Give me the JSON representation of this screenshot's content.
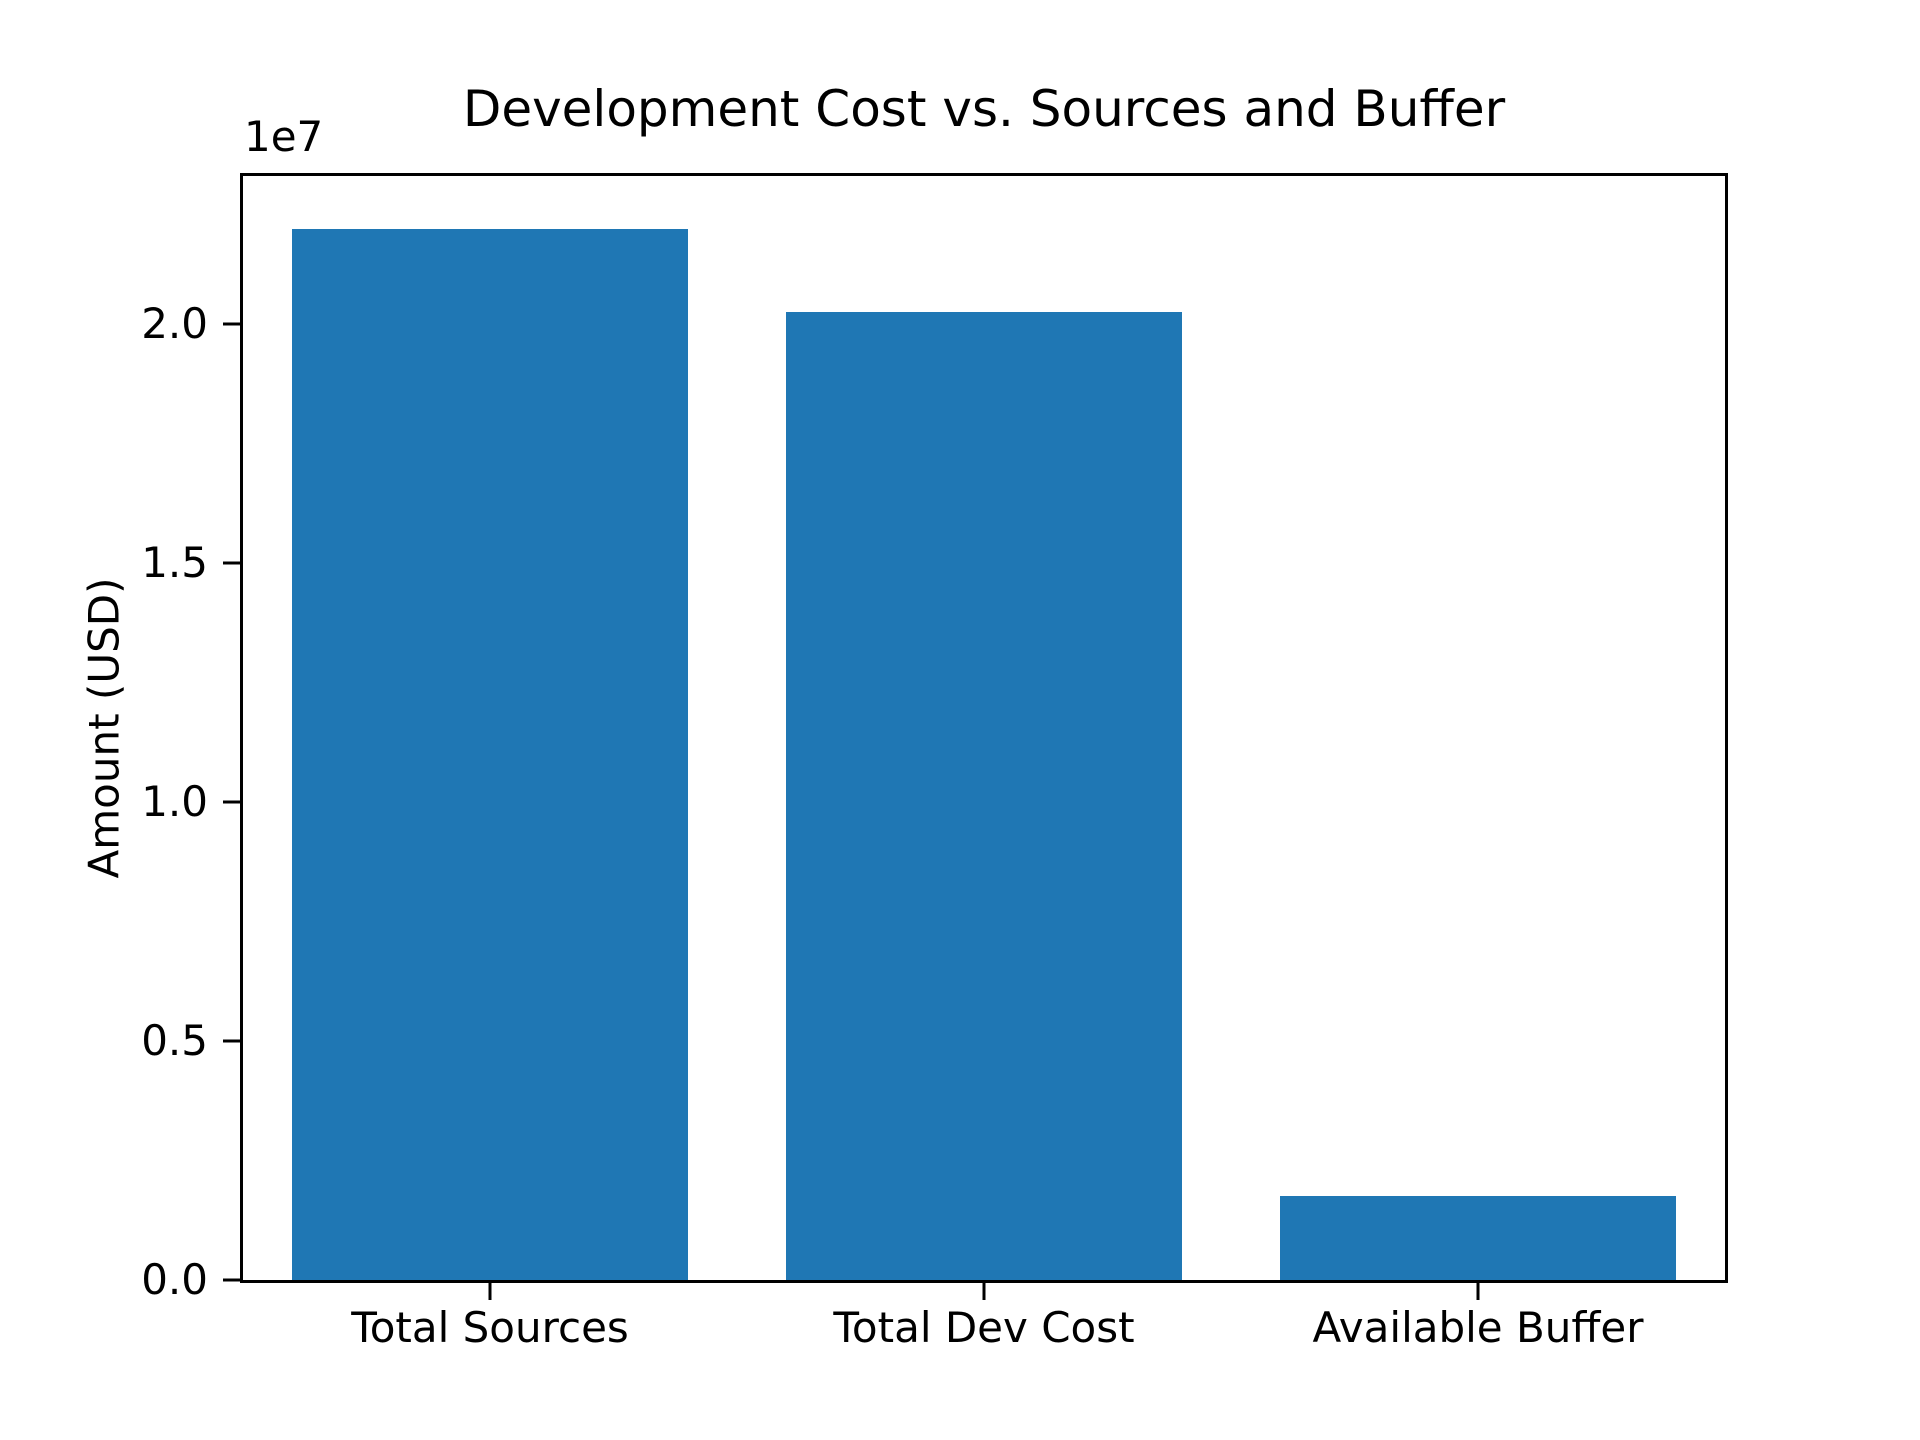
{
  "chart_data": {
    "type": "bar",
    "title": "Development Cost vs. Sources and Buffer",
    "xlabel": "",
    "ylabel": "Amount (USD)",
    "offset_text": "1e7",
    "categories": [
      "Total Sources",
      "Total Dev Cost",
      "Available Buffer"
    ],
    "values": [
      22000000,
      20250000,
      1750000
    ],
    "bar_color": "#1f77b4",
    "ylim": [
      0,
      23100000
    ],
    "yticks": [
      0,
      5000000,
      10000000,
      15000000,
      20000000
    ],
    "ytick_labels": [
      "0.0",
      "0.5",
      "1.0",
      "1.5",
      "2.0"
    ],
    "grid": false,
    "legend_position": "none",
    "bar_width_fraction": 0.8
  }
}
